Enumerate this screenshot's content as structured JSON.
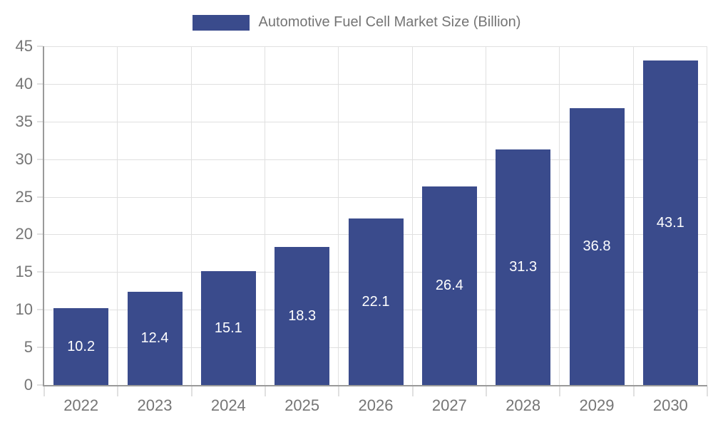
{
  "legend": {
    "label": "Automotive Fuel Cell Market Size (Billion)"
  },
  "chart_data": {
    "type": "bar",
    "title": "Automotive Fuel Cell Market Size (Billion)",
    "categories": [
      "2022",
      "2023",
      "2024",
      "2025",
      "2026",
      "2027",
      "2028",
      "2029",
      "2030"
    ],
    "values": [
      10.2,
      12.4,
      15.1,
      18.3,
      22.1,
      26.4,
      31.3,
      36.8,
      43.1
    ],
    "xlabel": "",
    "ylabel": "",
    "ylim": [
      0,
      45
    ],
    "yticks": [
      0,
      5,
      10,
      15,
      20,
      25,
      30,
      35,
      40,
      45
    ],
    "grid": true,
    "legend_position": "top",
    "bar_color": "#3A4B8C",
    "value_label_color": "#FFFFFF",
    "axis_text_color": "#757575",
    "gridline_color": "#E0E0E0",
    "axis_line_color": "#9A9A9A"
  }
}
